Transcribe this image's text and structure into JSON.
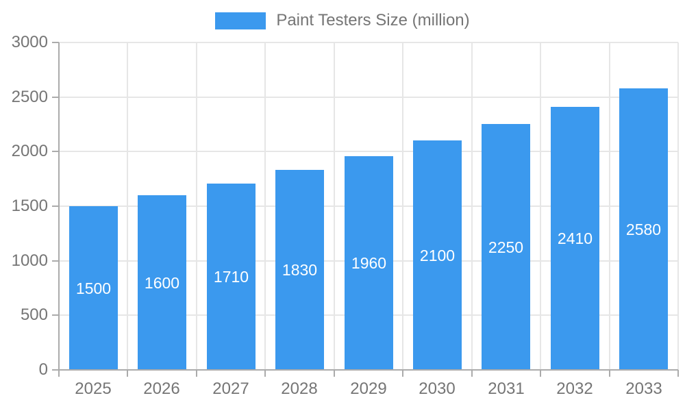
{
  "legend": {
    "label": "Paint Testers Size (million)"
  },
  "chart_data": {
    "type": "bar",
    "title": "Paint Testers Size (million)",
    "categories": [
      "2025",
      "2026",
      "2027",
      "2028",
      "2029",
      "2030",
      "2031",
      "2032",
      "2033"
    ],
    "values": [
      1500,
      1600,
      1710,
      1830,
      1960,
      2100,
      2250,
      2410,
      2580
    ],
    "xlabel": "",
    "ylabel": "",
    "ylim": [
      0,
      3000
    ],
    "yticks": [
      0,
      500,
      1000,
      1500,
      2000,
      2500,
      3000
    ],
    "grid": true,
    "legend_position": "top-center",
    "bar_color": "#3b99ee",
    "bar_label_color": "#ffffff",
    "axis_text_color": "#757575",
    "gridline_color": "#e6e6e6",
    "axis_line_color": "#ababab",
    "background_color": "#ffffff"
  }
}
